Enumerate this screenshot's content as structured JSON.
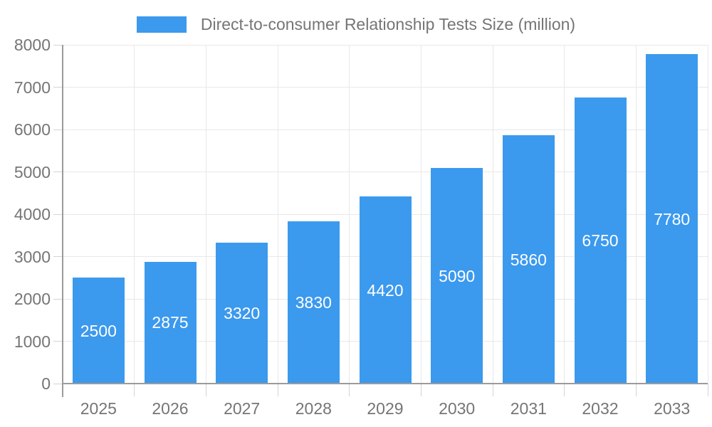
{
  "chart_data": {
    "type": "bar",
    "title": "",
    "legend": [
      "Direct-to-consumer Relationship Tests Size (million)"
    ],
    "legend_position": "top-center",
    "categories": [
      "2025",
      "2026",
      "2027",
      "2028",
      "2029",
      "2030",
      "2031",
      "2032",
      "2033"
    ],
    "series": [
      {
        "name": "Direct-to-consumer Relationship Tests Size (million)",
        "values": [
          2500,
          2875,
          3320,
          3830,
          4420,
          5090,
          5860,
          6750,
          7780
        ]
      }
    ],
    "xlabel": "",
    "ylabel": "",
    "ylim": [
      0,
      8000
    ],
    "y_tick_interval": 1000,
    "y_ticks": [
      0,
      1000,
      2000,
      3000,
      4000,
      5000,
      6000,
      7000,
      8000
    ],
    "grid": true,
    "bar_label_style": "inside-center-white",
    "colors": {
      "bar": "#3B99EE",
      "axis_label": "#757575",
      "value_label": "#FFFFFF",
      "gridline": "#E8E8E8",
      "tick": "#D4D4D4",
      "axis_line": "#9B9B9B",
      "background": "#FFFFFF"
    }
  }
}
